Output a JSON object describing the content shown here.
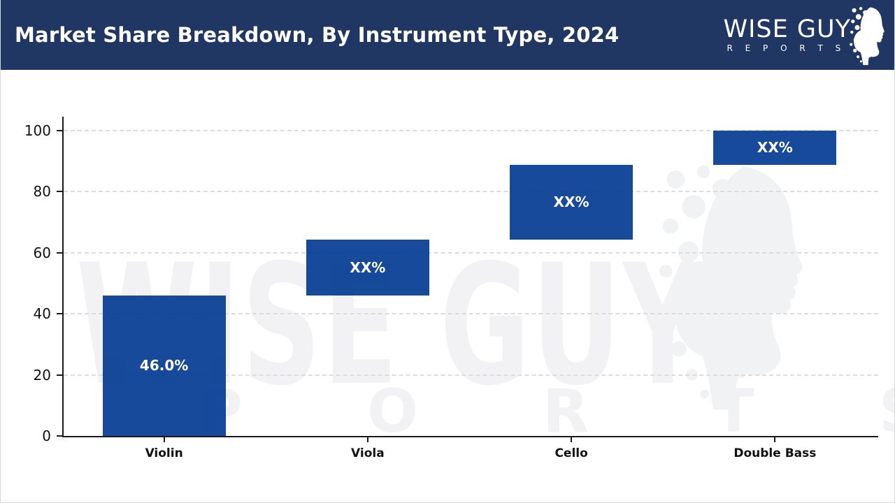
{
  "header": {
    "title": "Market Share Breakdown, By Instrument Type, 2024",
    "brand_line1": "WISE GUY",
    "brand_line2": "R E P O R T S"
  },
  "watermark": {
    "line1": "WISE GUY",
    "line2": "P O R T S"
  },
  "chart_data": {
    "type": "bar",
    "subtype": "waterfall",
    "title": "Market Share Breakdown, By Instrument Type, 2024",
    "categories": [
      "Violin",
      "Viola",
      "Cello",
      "Double Bass"
    ],
    "segments": [
      {
        "category": "Violin",
        "start": 0,
        "end": 46.0,
        "label": "46.0%"
      },
      {
        "category": "Viola",
        "start": 46.0,
        "end": 64.3,
        "label": "XX%"
      },
      {
        "category": "Cello",
        "start": 64.3,
        "end": 88.8,
        "label": "XX%"
      },
      {
        "category": "Double Bass",
        "start": 88.8,
        "end": 100.0,
        "label": "XX%"
      }
    ],
    "yticks": [
      0,
      20,
      40,
      60,
      80,
      100
    ],
    "ylim": [
      0,
      105
    ],
    "xlabel": "",
    "ylabel": "",
    "grid": "horizontal-dashed",
    "legend": "none",
    "bar_color": "#0a3f96",
    "bar_label_color": "#ffffff"
  },
  "colors": {
    "header_bg": "#213763",
    "title_text": "#ffffff",
    "bar": "#0a3f96",
    "gridline": "#dcdcdc",
    "axis": "#1a1a1a",
    "watermark": "#f2f2f4"
  }
}
